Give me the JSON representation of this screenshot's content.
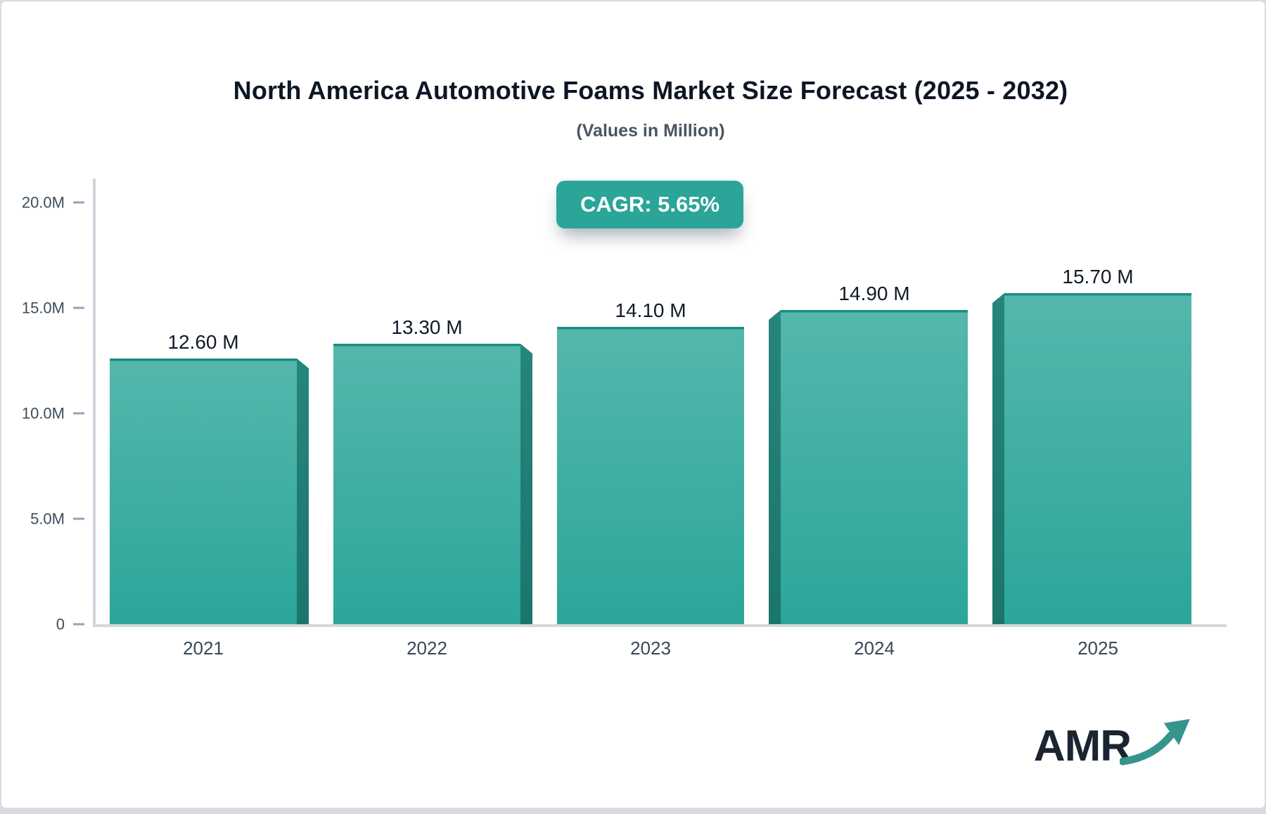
{
  "header": {
    "title": "North America Automotive Foams Market Size Forecast (2025 - 2032)",
    "subtitle": "(Values in Million)"
  },
  "badge": {
    "label": "CAGR: 5.65%",
    "bg_color": "#2aa598",
    "text_color": "#ffffff"
  },
  "chart_data": {
    "type": "bar",
    "title": "North America Automotive Foams Market Size Forecast (2025 - 2032)",
    "subtitle": "(Values in Million)",
    "categories": [
      "2021",
      "2022",
      "2023",
      "2024",
      "2025"
    ],
    "values": [
      12.6,
      13.3,
      14.1,
      14.9,
      15.7
    ],
    "value_labels": [
      "12.60 M",
      "13.30 M",
      "14.10 M",
      "14.90 M",
      "15.70 M"
    ],
    "xlabel": "",
    "ylabel": "",
    "ylim": [
      0,
      20
    ],
    "yticks": [
      {
        "value": 0,
        "label": "0"
      },
      {
        "value": 5,
        "label": "5.0M"
      },
      {
        "value": 10,
        "label": "10.0M"
      },
      {
        "value": 15,
        "label": "15.0M"
      },
      {
        "value": 20,
        "label": "20.0M"
      }
    ],
    "grid": false,
    "legend": false,
    "style": {
      "effect": "pseudo-3d bars, extrusion toward center vanishing point",
      "bar_face_top": "#55b7ac",
      "bar_face_bottom": "#2ba699",
      "bar_top_edge": "#1d8c82",
      "bar_side_top": "#26867c",
      "bar_side_bottom": "#1b756c",
      "axis_color": "#ced4dc",
      "baseline_color": "#d4d8de",
      "tick_color": "#9aa3ae"
    }
  },
  "logo": {
    "text": "AMR",
    "icon": "trend-up-arrow",
    "text_color": "#1b2531",
    "arrow_color": "#36948d"
  }
}
